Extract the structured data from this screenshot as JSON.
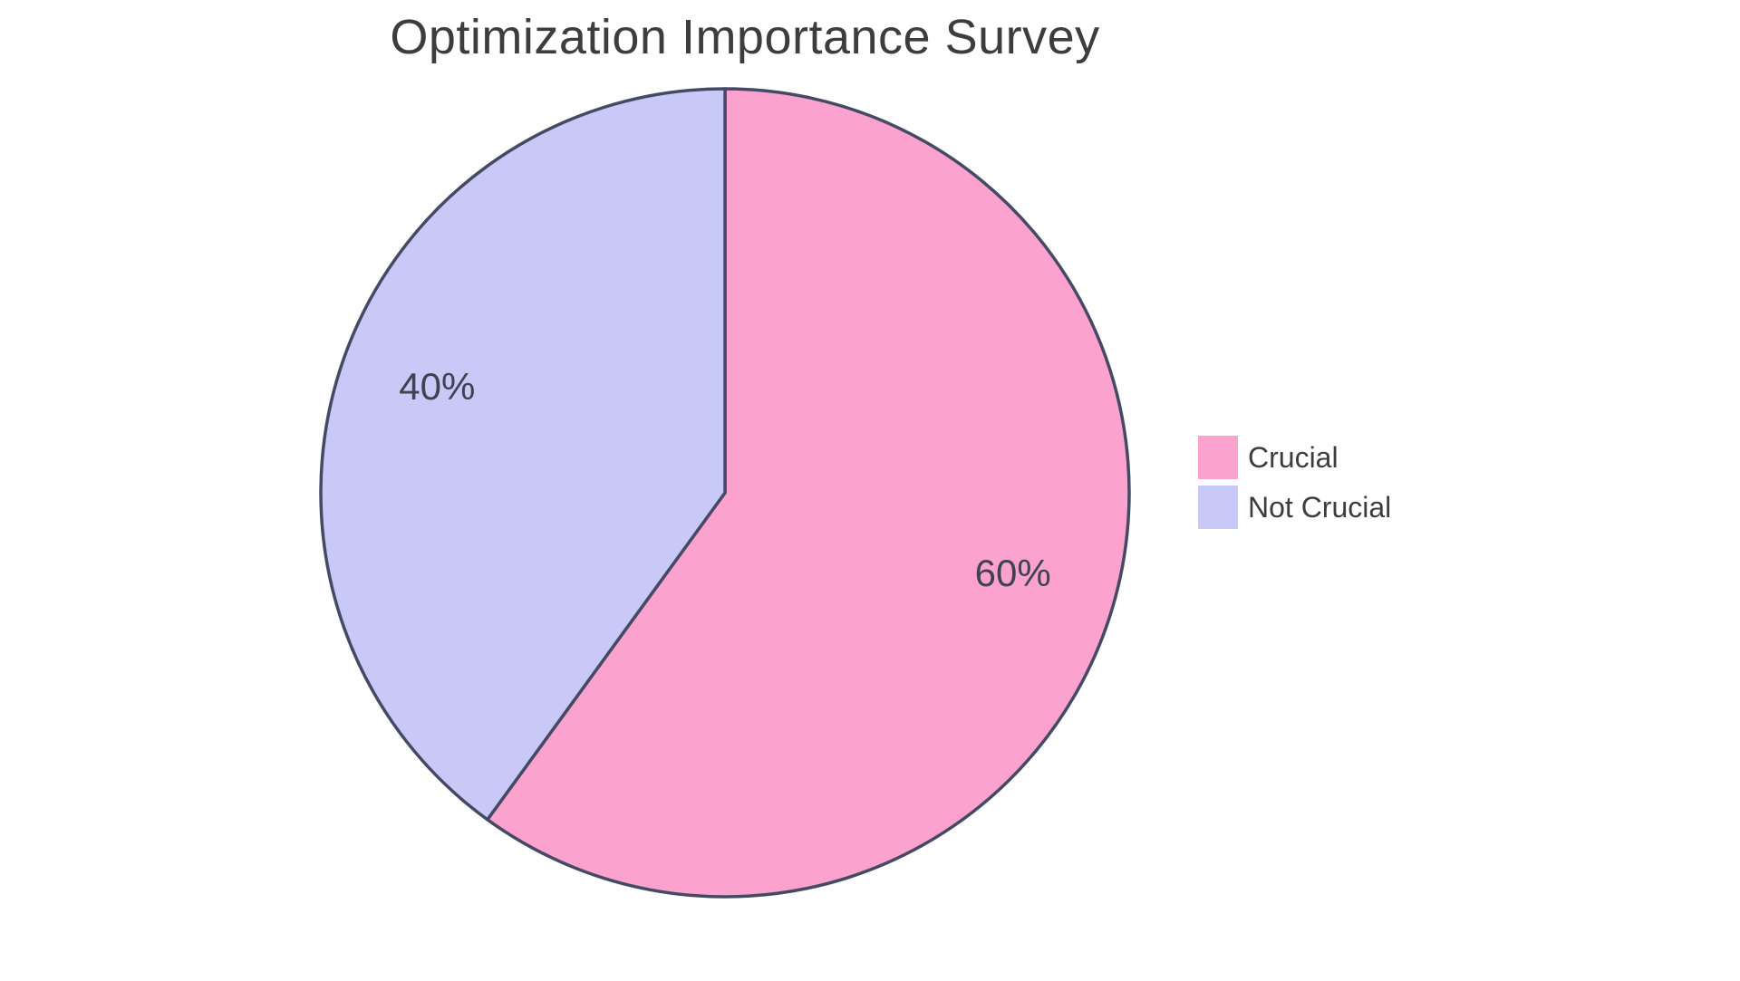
{
  "chart_data": {
    "type": "pie",
    "title": "Optimization Importance Survey",
    "slices": [
      {
        "label": "Crucial",
        "value": 60,
        "display": "60%",
        "color": "#FCA2CE"
      },
      {
        "label": "Not Crucial",
        "value": 40,
        "display": "40%",
        "color": "#C9C9F8"
      }
    ],
    "start_angle": "12-oclock",
    "direction": "clockwise",
    "stroke_color": "#454A64",
    "stroke_width": 3.5,
    "slice_label_color": "#3F4250",
    "title_color": "#3D3D3D",
    "legend_position": "right",
    "background": "#FFFFFF"
  }
}
